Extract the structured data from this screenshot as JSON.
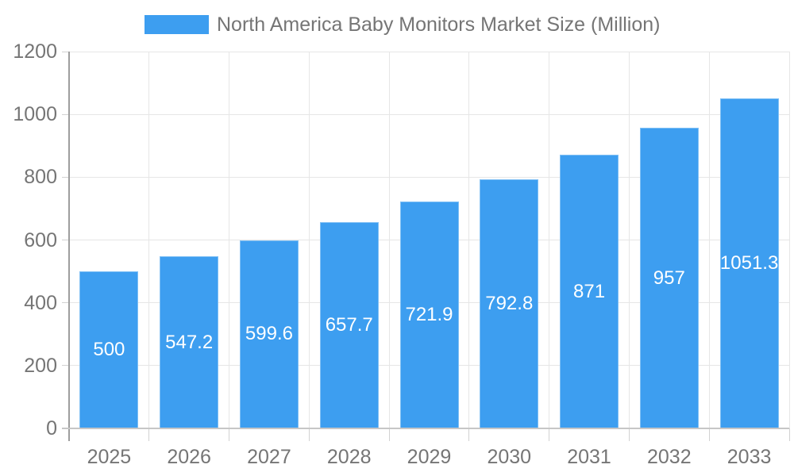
{
  "legend": {
    "label": "North America Baby Monitors Market Size (Million)"
  },
  "chart_data": {
    "type": "bar",
    "title": "North America Baby Monitors Market Size (Million)",
    "categories": [
      "2025",
      "2026",
      "2027",
      "2028",
      "2029",
      "2030",
      "2031",
      "2032",
      "2033"
    ],
    "values": [
      500,
      547.2,
      599.6,
      657.7,
      721.9,
      792.8,
      871,
      957,
      1051.3
    ],
    "xlabel": "",
    "ylabel": "",
    "ylim": [
      0,
      1200
    ],
    "y_ticks": [
      0,
      200,
      400,
      600,
      800,
      1000,
      1200
    ],
    "grid": true,
    "legend_position": "top",
    "value_label_position": "inside-center",
    "colors": {
      "bar": "#3d9ef0",
      "value_label": "#ffffff",
      "axis_text": "#757575",
      "gridline": "#e6e6e6",
      "axis_line": "#9e9e9e",
      "x_axis_line": "#c6c6c6",
      "tick": "#d2d2d2",
      "background": "#ffffff"
    }
  }
}
